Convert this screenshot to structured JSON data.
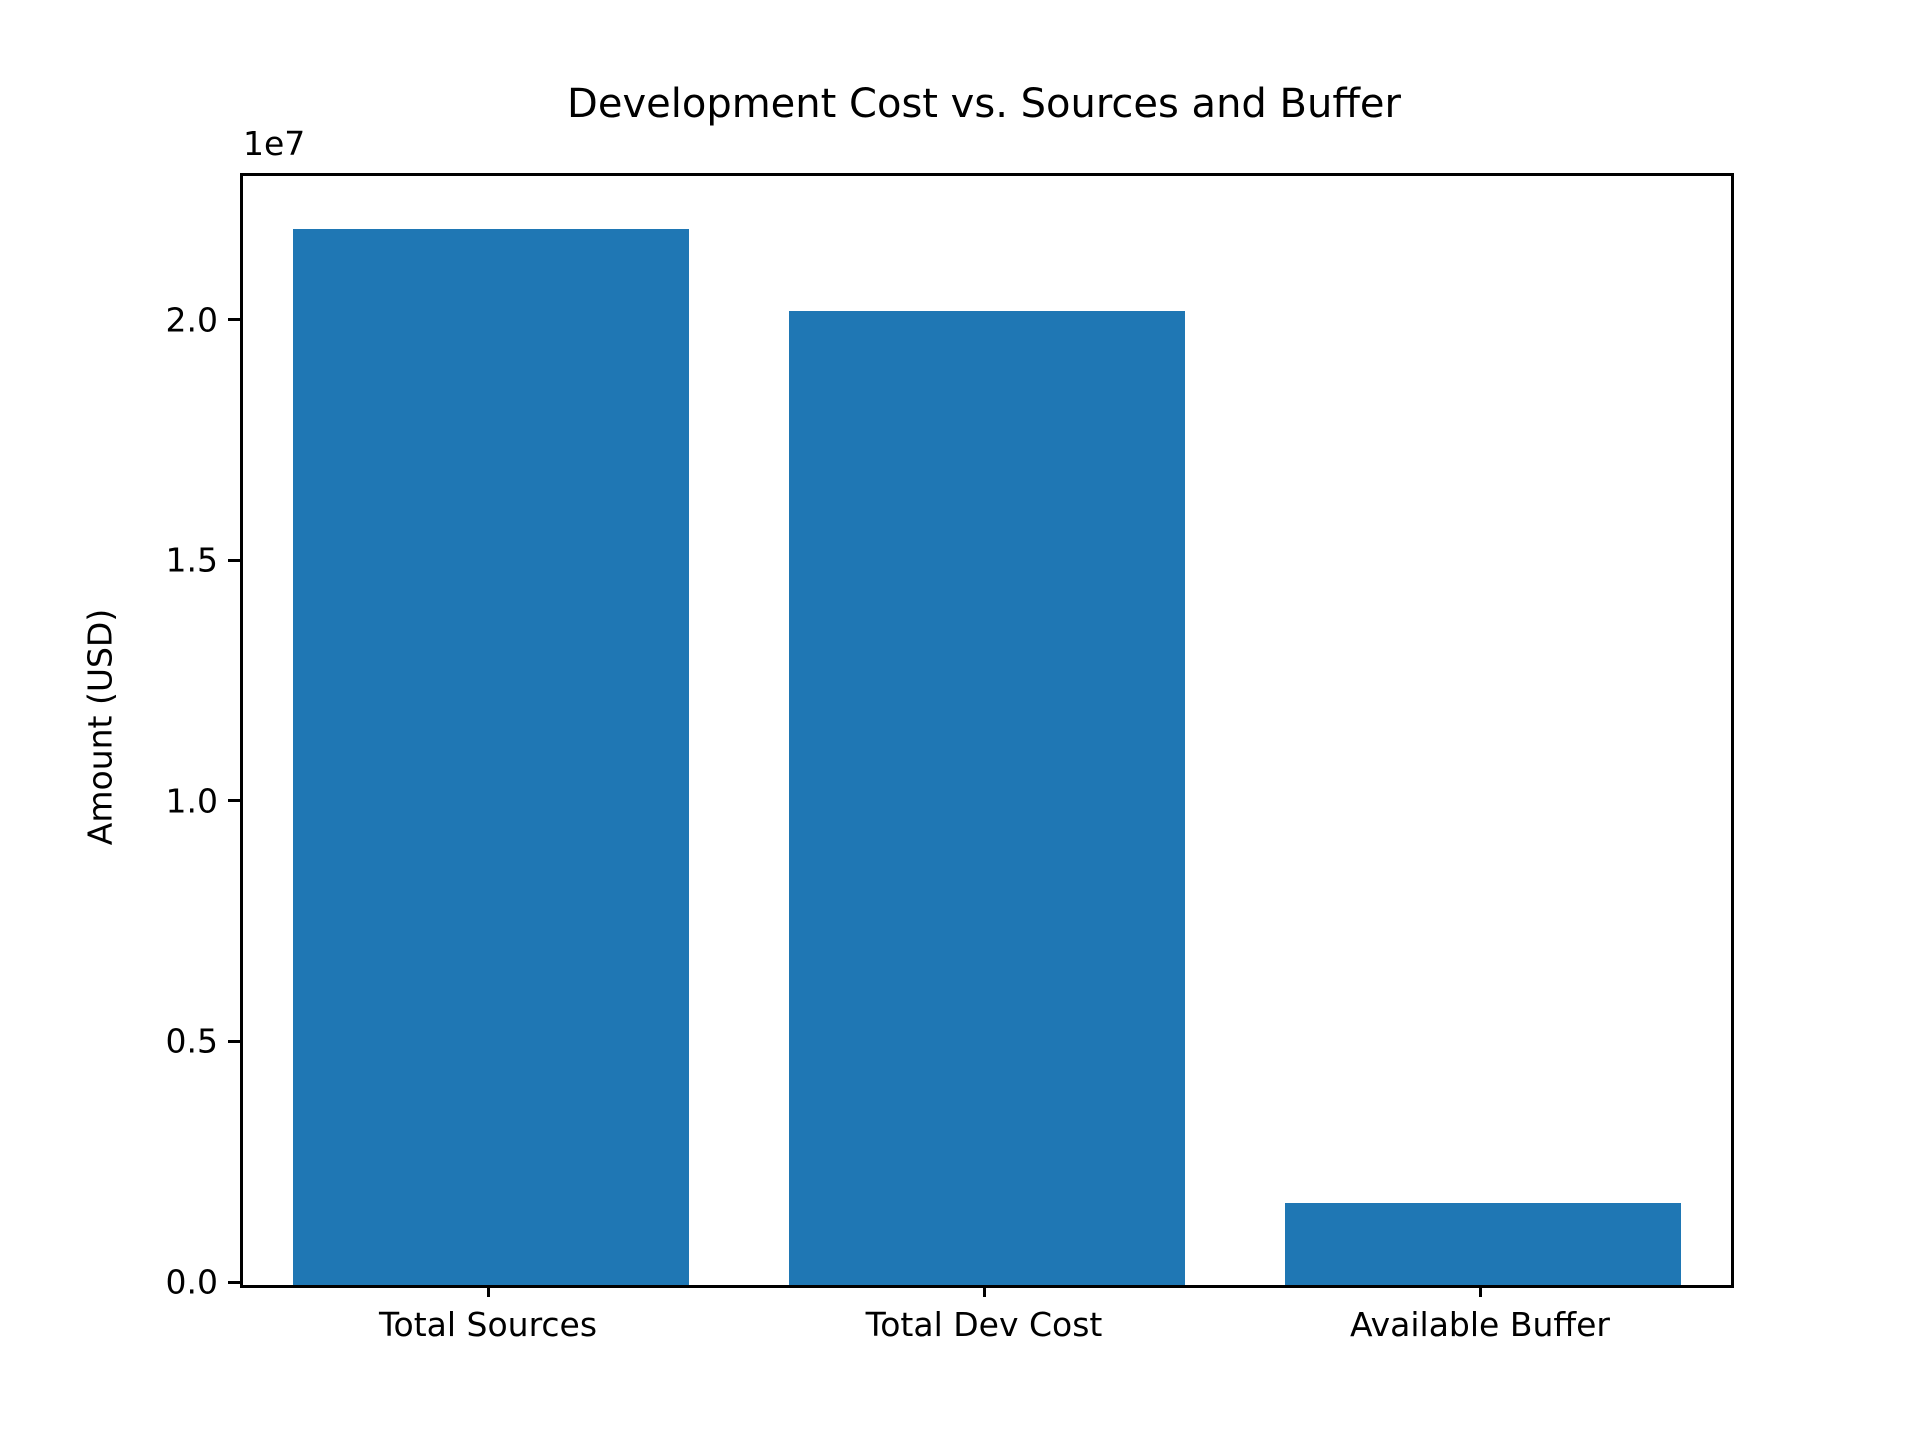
{
  "chart_data": {
    "type": "bar",
    "title": "Development Cost vs. Sources and Buffer",
    "ylabel": "Amount (USD)",
    "xlabel": "",
    "y_offset_text": "1e7",
    "categories": [
      "Total Sources",
      "Total Dev Cost",
      "Available Buffer"
    ],
    "values": [
      21950000,
      20250000,
      1700000
    ],
    "ytick_values": [
      0,
      5000000,
      10000000,
      15000000,
      20000000
    ],
    "ytick_labels": [
      "0.0",
      "0.5",
      "1.0",
      "1.5",
      "2.0"
    ],
    "ylim": [
      0,
      23050000
    ],
    "bar_color": "#1f77b4",
    "axis_color": "#000000",
    "background_color": "#ffffff",
    "grid": false,
    "legend": false,
    "bar_width_fraction": 0.8
  }
}
